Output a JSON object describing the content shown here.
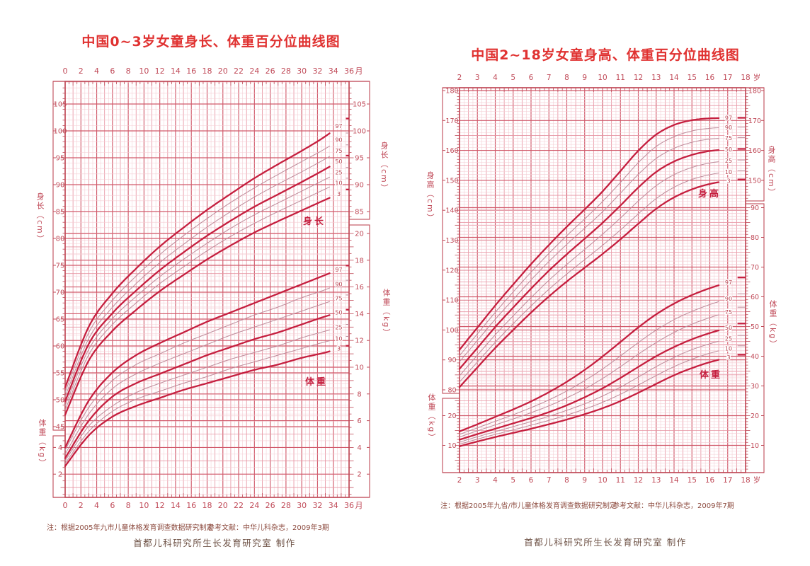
{
  "colors": {
    "background": "#ffffff",
    "title": "#e03231",
    "axis_text": "#c04a58",
    "grid_major": "#d15a6b",
    "grid_medium": "#e795a3",
    "grid_minor": "#f4ccd3",
    "frame": "#c04a58",
    "curve_main": "#c51f3f",
    "curve_sub": "#c08e9d",
    "percentile_text": "#b8404e",
    "note_text": "#8c4a3e",
    "credit_text": "#6f5347"
  },
  "chart_data": [
    {
      "id": "girls-0-3",
      "type": "line",
      "title": "中国0~3岁女童身长、体重百分位曲线图",
      "x_axis": {
        "unit": "月",
        "min": 0,
        "max": 36,
        "tick_step": 2,
        "ticks": [
          0,
          2,
          4,
          6,
          8,
          10,
          12,
          14,
          16,
          18,
          20,
          22,
          24,
          26,
          28,
          30,
          32,
          34,
          36
        ]
      },
      "percentile_labels": [
        "97",
        "90",
        "75",
        "50",
        "25",
        "10",
        "3"
      ],
      "bold_percentiles": [
        "97",
        "50",
        "3"
      ],
      "height_series": {
        "name": "身长",
        "axis_label": "身长（cm）",
        "unit": "cm",
        "axis_range": [
          45,
          105
        ],
        "x_points": [
          0,
          3,
          6,
          9,
          12,
          15,
          18,
          21,
          24,
          27,
          30,
          33,
          36
        ],
        "percentiles": {
          "97": [
            52.3,
            63.6,
            69.8,
            74.4,
            78.5,
            82.0,
            85.3,
            88.3,
            91.2,
            93.8,
            96.3,
            99.0,
            102.3
          ],
          "90": [
            51.4,
            62.5,
            68.5,
            73.0,
            77.0,
            80.5,
            83.7,
            86.7,
            89.4,
            91.9,
            94.3,
            96.7,
            99.6
          ],
          "75": [
            50.6,
            61.4,
            67.2,
            71.6,
            75.5,
            78.9,
            82.1,
            85.0,
            87.7,
            90.1,
            92.4,
            94.8,
            97.4
          ],
          "50": [
            49.7,
            60.4,
            66.1,
            70.3,
            74.1,
            77.4,
            80.5,
            83.3,
            85.9,
            88.2,
            90.5,
            92.9,
            95.4
          ],
          "25": [
            48.9,
            59.4,
            65.1,
            69.2,
            72.9,
            76.1,
            79.1,
            81.9,
            84.4,
            86.6,
            88.8,
            91.0,
            93.2
          ],
          "10": [
            48.1,
            58.4,
            64.0,
            68.0,
            71.6,
            74.7,
            77.7,
            80.4,
            82.8,
            85.0,
            87.1,
            89.2,
            91.2
          ],
          "3": [
            47.2,
            57.3,
            62.8,
            66.7,
            70.2,
            73.2,
            76.1,
            78.7,
            81.1,
            83.2,
            85.2,
            87.2,
            89.1
          ]
        }
      },
      "weight_series": {
        "name": "体重",
        "axis_label": "体重（kg）",
        "unit": "kg",
        "axis_range": [
          2,
          20
        ],
        "x_points": [
          0,
          3,
          6,
          9,
          12,
          15,
          18,
          21,
          24,
          27,
          30,
          33,
          36
        ],
        "percentiles": {
          "97": [
            4.0,
            7.5,
            9.6,
            10.9,
            11.8,
            12.6,
            13.4,
            14.1,
            14.8,
            15.5,
            16.2,
            16.9,
            17.6
          ],
          "90": [
            3.8,
            7.0,
            9.0,
            10.2,
            11.0,
            11.8,
            12.5,
            13.2,
            13.9,
            14.5,
            15.2,
            15.8,
            16.5
          ],
          "75": [
            3.5,
            6.5,
            8.4,
            9.5,
            10.3,
            11.0,
            11.7,
            12.4,
            13.0,
            13.6,
            14.2,
            14.8,
            15.4
          ],
          "50": [
            3.2,
            6.0,
            7.8,
            8.8,
            9.5,
            10.2,
            10.9,
            11.5,
            12.1,
            12.6,
            13.2,
            13.8,
            14.3
          ],
          "25": [
            3.0,
            5.6,
            7.1,
            8.1,
            8.8,
            9.4,
            10.0,
            10.6,
            11.1,
            11.6,
            12.2,
            12.7,
            13.2
          ],
          "10": [
            2.8,
            5.2,
            6.7,
            7.6,
            8.2,
            8.8,
            9.3,
            9.9,
            10.4,
            10.9,
            11.4,
            11.9,
            12.3
          ],
          "3": [
            2.6,
            4.9,
            6.3,
            7.1,
            7.7,
            8.3,
            8.8,
            9.3,
            9.8,
            10.2,
            10.7,
            11.1,
            11.6
          ]
        }
      },
      "left_axis": {
        "height_ticks": [
          105,
          100,
          95,
          90,
          85,
          80,
          75,
          70,
          65,
          60,
          55,
          50,
          45
        ],
        "weight_ticks": [
          4,
          2
        ]
      },
      "right_axis": {
        "height_ticks": [
          105,
          100,
          95,
          90,
          85
        ],
        "weight_ticks": [
          20,
          18,
          16,
          14,
          12,
          10,
          8,
          6,
          4,
          2
        ]
      },
      "note": "注：根据2005年九市儿童体格发育调查数据研究制定",
      "reference": "参考文献：中华儿科杂志，2009年3期",
      "credit": "首都儿科研究所生长发育研究室  制作"
    },
    {
      "id": "girls-2-18",
      "type": "line",
      "title": "中国2~18岁女童身高、体重百分位曲线图",
      "x_axis": {
        "unit": "岁",
        "min": 2,
        "max": 18,
        "tick_step": 1,
        "ticks": [
          2,
          3,
          4,
          5,
          6,
          7,
          8,
          9,
          10,
          11,
          12,
          13,
          14,
          15,
          16,
          17,
          18
        ]
      },
      "percentile_labels": [
        "97",
        "90",
        "75",
        "50",
        "25",
        "10",
        "3"
      ],
      "bold_percentiles": [
        "97",
        "50",
        "3"
      ],
      "height_series": {
        "name": "身高",
        "axis_label": "身高（cm）",
        "unit": "cm",
        "axis_range": [
          80,
          180
        ],
        "x_points": [
          2,
          3,
          4,
          5,
          6,
          7,
          8,
          9,
          10,
          11,
          12,
          13,
          14,
          15,
          16,
          17,
          18
        ],
        "percentiles": {
          "97": [
            93.4,
            100.8,
            108.2,
            115.2,
            122.0,
            128.4,
            134.5,
            140.3,
            146.3,
            153.1,
            159.9,
            165.3,
            168.5,
            170.1,
            170.7,
            170.8,
            170.9
          ],
          "90": [
            91.4,
            98.7,
            105.9,
            112.7,
            119.3,
            125.6,
            131.5,
            137.1,
            142.9,
            149.3,
            155.9,
            161.3,
            164.6,
            166.5,
            167.4,
            167.7,
            167.8
          ],
          "75": [
            89.4,
            96.5,
            103.6,
            110.2,
            116.7,
            122.9,
            128.6,
            134.0,
            139.5,
            145.7,
            152.0,
            157.3,
            160.7,
            162.7,
            163.8,
            164.1,
            164.3
          ],
          "50": [
            87.0,
            94.0,
            101.0,
            107.5,
            113.8,
            119.8,
            125.3,
            130.5,
            135.8,
            141.6,
            147.6,
            152.8,
            156.3,
            158.5,
            159.8,
            160.3,
            160.5
          ],
          "25": [
            84.7,
            91.6,
            98.4,
            104.7,
            110.8,
            116.6,
            121.9,
            126.9,
            132.0,
            137.4,
            143.1,
            148.2,
            151.9,
            154.3,
            155.8,
            156.5,
            156.8
          ],
          "10": [
            82.6,
            89.3,
            95.9,
            102.1,
            108.0,
            113.6,
            118.7,
            123.5,
            128.3,
            133.4,
            138.8,
            143.9,
            147.7,
            150.3,
            151.9,
            152.8,
            153.2
          ],
          "3": [
            80.9,
            87.5,
            94.0,
            100.0,
            105.8,
            111.2,
            116.2,
            120.8,
            125.4,
            130.3,
            135.5,
            140.5,
            144.3,
            147.0,
            148.8,
            149.8,
            150.3
          ]
        }
      },
      "weight_series": {
        "name": "体重",
        "axis_label": "体重（kg）",
        "unit": "kg",
        "axis_range": [
          10,
          90
        ],
        "x_points": [
          2,
          3,
          4,
          5,
          6,
          7,
          8,
          9,
          10,
          11,
          12,
          13,
          14,
          15,
          16,
          17,
          18
        ],
        "percentiles": {
          "97": [
            14.7,
            17.1,
            19.6,
            22.1,
            24.8,
            27.9,
            31.4,
            35.4,
            39.9,
            44.8,
            49.7,
            54.1,
            57.7,
            60.6,
            62.9,
            64.8,
            66.5
          ],
          "90": [
            13.7,
            15.9,
            18.1,
            20.3,
            22.7,
            25.3,
            28.3,
            31.8,
            35.7,
            40.1,
            44.6,
            48.8,
            52.3,
            55.1,
            57.4,
            59.3,
            61.0
          ],
          "75": [
            12.8,
            14.9,
            16.9,
            18.9,
            21.0,
            23.3,
            26.0,
            29.0,
            32.5,
            36.5,
            40.7,
            44.6,
            48.0,
            50.8,
            53.0,
            54.8,
            56.5
          ],
          "50": [
            11.9,
            13.8,
            15.6,
            17.4,
            19.2,
            21.2,
            23.5,
            26.2,
            29.2,
            32.7,
            36.4,
            40.0,
            43.1,
            45.7,
            47.8,
            49.5,
            51.0
          ],
          "25": [
            11.1,
            12.9,
            14.6,
            16.3,
            18.0,
            19.8,
            21.8,
            24.0,
            26.6,
            29.6,
            33.0,
            36.5,
            39.6,
            42.2,
            44.2,
            45.8,
            47.0
          ],
          "10": [
            10.4,
            12.1,
            13.7,
            15.2,
            16.8,
            18.4,
            20.2,
            22.2,
            24.5,
            27.2,
            30.3,
            33.5,
            36.5,
            39.0,
            41.0,
            42.5,
            43.5
          ],
          "3": [
            9.7,
            11.3,
            12.8,
            14.2,
            15.6,
            17.1,
            18.7,
            20.5,
            22.5,
            24.9,
            27.7,
            30.7,
            33.6,
            36.0,
            38.0,
            39.5,
            40.5
          ]
        }
      },
      "left_axis": {
        "height_ticks": [
          180,
          170,
          160,
          150,
          140,
          130,
          120,
          110,
          100,
          90,
          80
        ],
        "weight_ticks": [
          20,
          10
        ]
      },
      "right_axis": {
        "height_ticks": [
          180,
          170,
          160,
          150
        ],
        "weight_ticks": [
          90,
          80,
          70,
          60,
          50,
          40,
          30,
          20,
          10
        ]
      },
      "note": "注：根据2005年九省/市儿童体格发育调查数据研究制定",
      "reference": "参考文献：中华儿科杂志，2009年7期",
      "credit": "首都儿科研究所生长发育研究室  制作"
    }
  ]
}
